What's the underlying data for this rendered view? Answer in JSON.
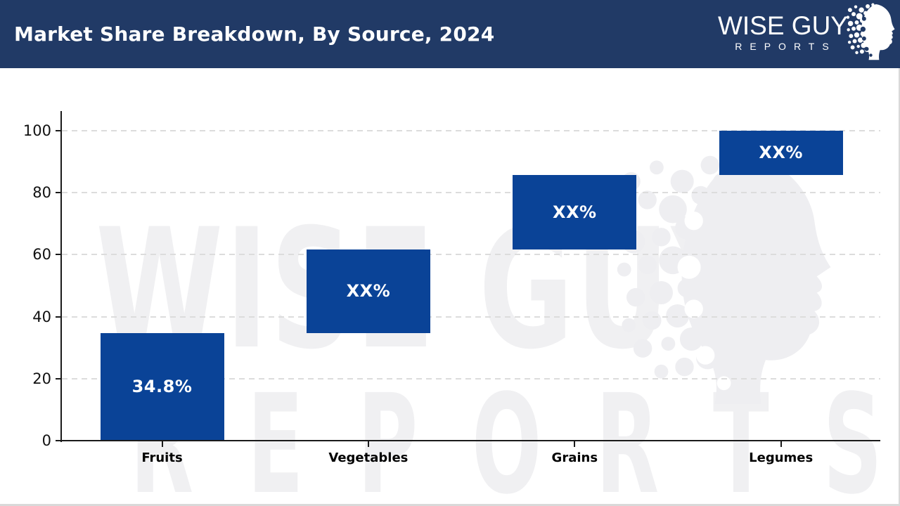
{
  "header": {
    "title": "Market Share Breakdown, By Source, 2024",
    "logo": {
      "wordmark": "WISE GUY",
      "subtext": "REPORTS"
    }
  },
  "watermark": {
    "wordmark": "WISE GUY",
    "subtext": "R E P O R T S"
  },
  "chart_data": {
    "type": "bar",
    "subtype": "waterfall",
    "title": "Market Share Breakdown, By Source, 2024",
    "xlabel": "",
    "ylabel": "",
    "categories": [
      "Fruits",
      "Vegetables",
      "Grains",
      "Legumes"
    ],
    "segments": [
      {
        "category": "Fruits",
        "start": 0,
        "end": 34.8,
        "label": "34.8%"
      },
      {
        "category": "Vegetables",
        "start": 34.8,
        "end": 61.6,
        "label": "XX%"
      },
      {
        "category": "Grains",
        "start": 61.6,
        "end": 85.8,
        "label": "XX%"
      },
      {
        "category": "Legumes",
        "start": 85.8,
        "end": 100,
        "label": "XX%"
      }
    ],
    "yticks": [
      0,
      20,
      40,
      60,
      80,
      100
    ],
    "ylim": [
      0,
      107
    ],
    "grid": "horizontal-dashed",
    "legend_position": "none"
  },
  "colors": {
    "header_bg": "#213A66",
    "bar": "#0A4397",
    "bar_label": "#FFFFFF",
    "axis": "#1A1A1A",
    "gridline": "#DCDCDC",
    "tick_label": "#111111",
    "watermark": "#F0F0F2",
    "frame_border": "#D9D9D9"
  }
}
